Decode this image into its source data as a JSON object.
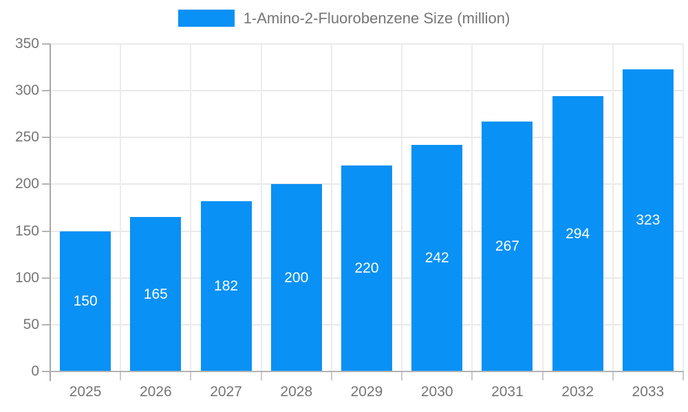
{
  "legend": {
    "label": "1-Amino-2-Fluorobenzene Size (million)"
  },
  "chart_data": {
    "type": "bar",
    "title": "",
    "xlabel": "",
    "ylabel": "",
    "categories": [
      "2025",
      "2026",
      "2027",
      "2028",
      "2029",
      "2030",
      "2031",
      "2032",
      "2033"
    ],
    "series": [
      {
        "name": "1-Amino-2-Fluorobenzene Size (million)",
        "values": [
          150,
          165,
          182,
          200,
          220,
          242,
          267,
          294,
          323
        ]
      }
    ],
    "data_labels_shown": true,
    "ylim": [
      0,
      350
    ],
    "yticks": [
      0,
      50,
      100,
      150,
      200,
      250,
      300,
      350
    ],
    "grid": true,
    "legend_position": "top",
    "colors": {
      "bar": "#0991f5",
      "bar_label_text": "#ffffff",
      "axis_text": "#757575",
      "legend_text": "#757575",
      "gridline": "#e9e9e9",
      "axis_line": "#a6a6a6",
      "background": "#ffffff"
    }
  }
}
